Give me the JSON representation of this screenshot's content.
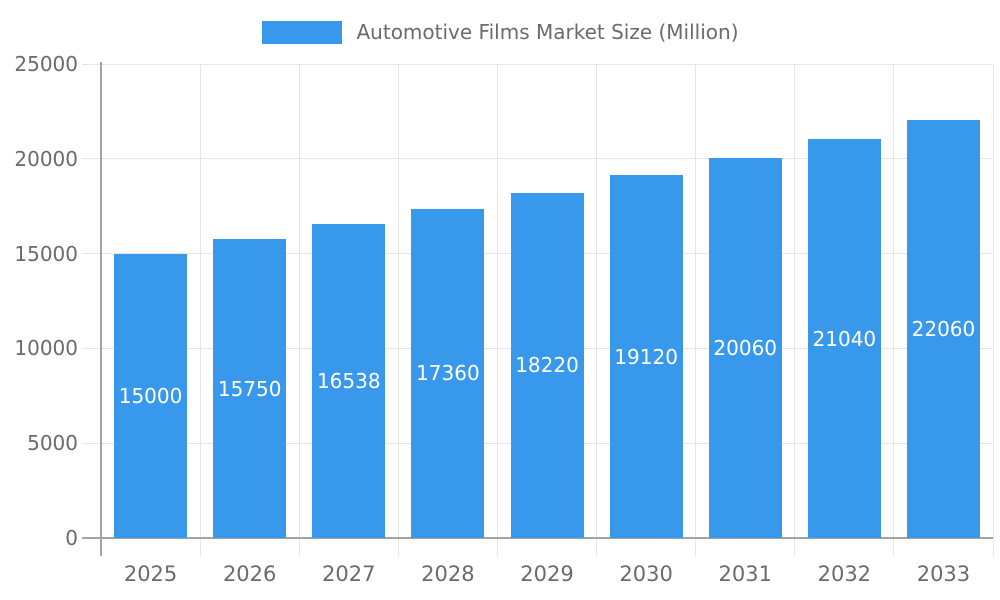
{
  "chart_data": {
    "type": "bar",
    "legend_label": "Automotive Films Market Size (Million)",
    "legend_position": "top",
    "categories": [
      "2025",
      "2026",
      "2027",
      "2028",
      "2029",
      "2030",
      "2031",
      "2032",
      "2033"
    ],
    "series": [
      {
        "name": "Automotive Films Market Size (Million)",
        "values": [
          15000,
          15750,
          16538,
          17360,
          18220,
          19120,
          20060,
          21040,
          22060
        ]
      }
    ],
    "bar_value_labels": [
      "15000",
      "15750",
      "16538",
      "17360",
      "18220",
      "19120",
      "20060",
      "21040",
      "22060"
    ],
    "xlabel": "",
    "ylabel": "",
    "ylim": [
      0,
      25000
    ],
    "ytick_step": 5000,
    "ytick_labels": [
      "0",
      "5000",
      "10000",
      "15000",
      "20000",
      "25000"
    ],
    "grid": true,
    "colors": {
      "bar": "#3899EC",
      "grid": "#E6E6E6",
      "axis": "#A3A3A3",
      "tick_label": "#6B6B6B",
      "bar_label": "#FFFFFF",
      "background": "#FFFFFF"
    }
  }
}
